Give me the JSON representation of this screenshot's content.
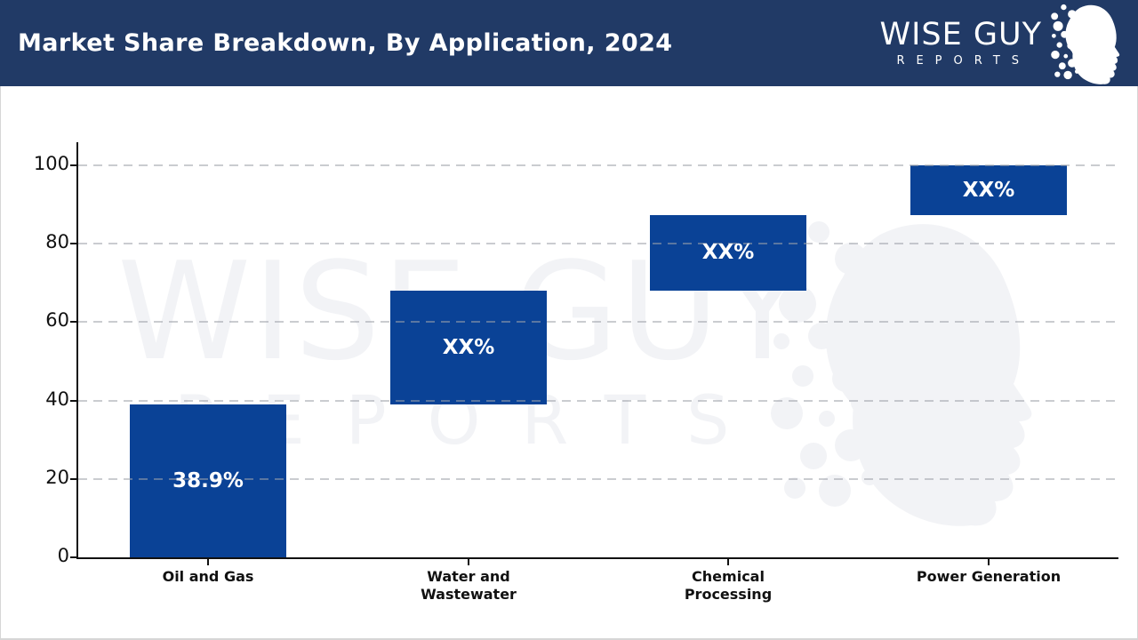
{
  "header": {
    "title": "Market Share Breakdown, By Application, 2024",
    "logo": {
      "name": "WISE GUY",
      "tagline": "REPORTS"
    }
  },
  "watermark": {
    "line1": "WISE GUY",
    "line2": "REPORTS"
  },
  "colors": {
    "header_bg": "#213a66",
    "bar": "#0a4296",
    "axis": "#111111",
    "grid": "#c9ccd1",
    "watermark": "#f2f3f6",
    "label_on_bar": "#ffffff"
  },
  "chart_data": {
    "type": "bar",
    "subtype": "waterfall-stacked-percent",
    "title": "Market Share Breakdown, By Application, 2024",
    "xlabel": "",
    "ylabel": "",
    "ylim": [
      0,
      106
    ],
    "yticks": [
      0,
      20,
      40,
      60,
      80,
      100
    ],
    "grid": "horizontal-dashed",
    "legend": "none",
    "categories": [
      "Oil and Gas",
      "Water and\nWastewater",
      "Chemical\nProcessing",
      "Power Generation"
    ],
    "segments": [
      {
        "category": "Oil and Gas",
        "start": 0,
        "end": 38.9,
        "value_shown": "38.9",
        "label": "38.9%"
      },
      {
        "category": "Water and\nWastewater",
        "start": 38.9,
        "end": 68.0,
        "value_shown": "XX",
        "label": "XX%"
      },
      {
        "category": "Chemical\nProcessing",
        "start": 68.0,
        "end": 87.3,
        "value_shown": "XX",
        "label": "XX%"
      },
      {
        "category": "Power Generation",
        "start": 87.3,
        "end": 100.0,
        "value_shown": "XX",
        "label": "XX%"
      }
    ]
  }
}
